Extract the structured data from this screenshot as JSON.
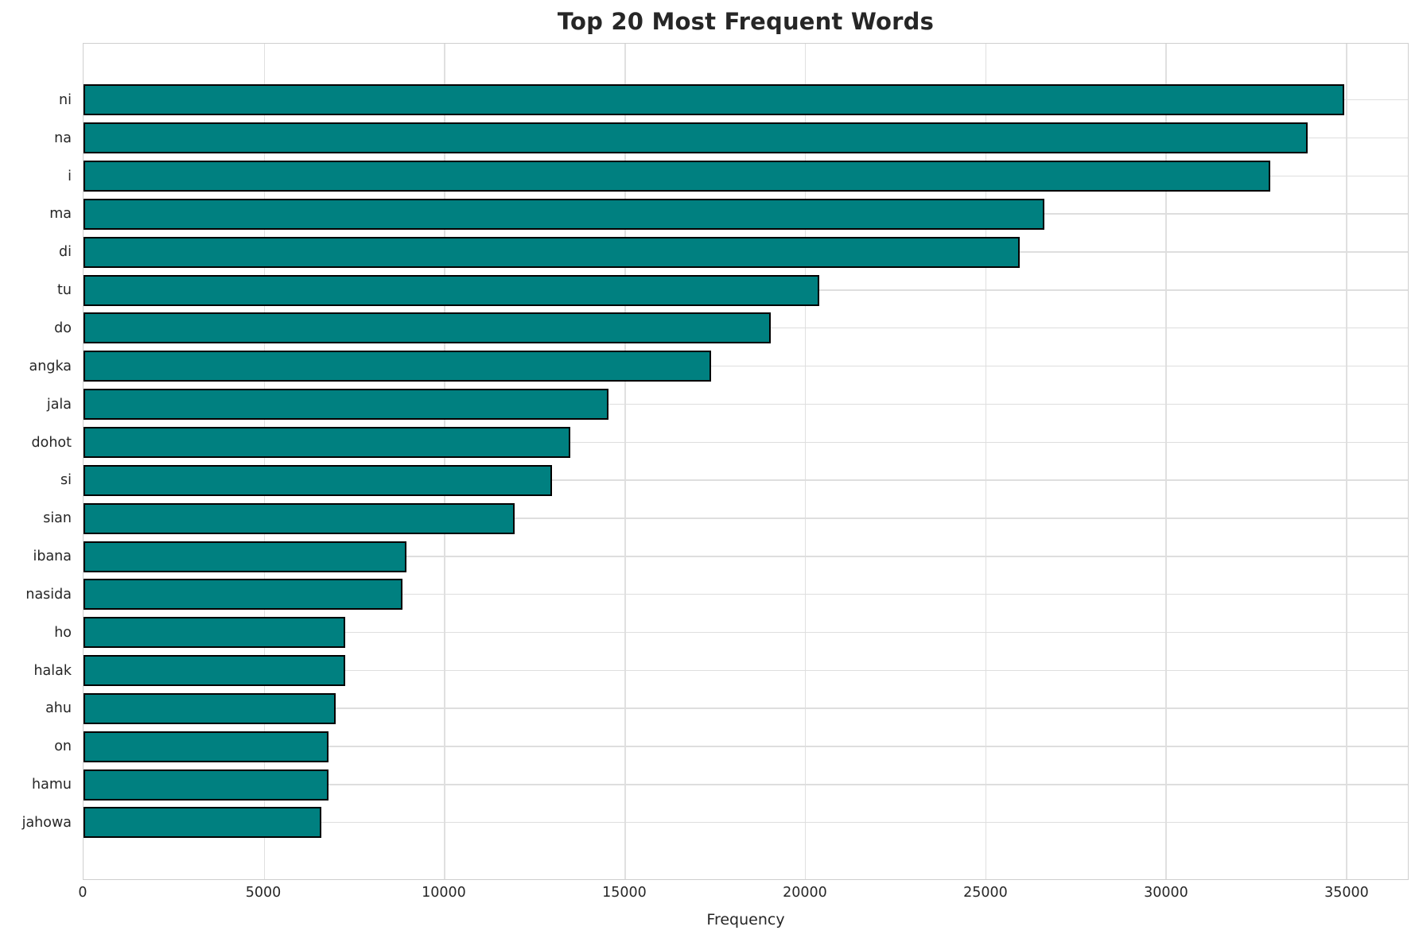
{
  "title": "Top 20 Most Frequent Words",
  "chart_data": {
    "type": "bar",
    "orientation": "horizontal",
    "title": "Top 20 Most Frequent Words",
    "xlabel": "Frequency",
    "ylabel": "",
    "categories": [
      "ni",
      "na",
      "i",
      "ma",
      "di",
      "tu",
      "do",
      "angka",
      "jala",
      "dohot",
      "si",
      "sian",
      "ibana",
      "nasida",
      "ho",
      "halak",
      "ahu",
      "on",
      "hamu",
      "jahowa"
    ],
    "values": [
      34950,
      33950,
      32900,
      26650,
      25950,
      20400,
      19050,
      17400,
      14550,
      13500,
      13000,
      11950,
      8950,
      8850,
      7250,
      7250,
      7000,
      6800,
      6800,
      6600
    ],
    "xlim": [
      0,
      36720
    ],
    "xticks": [
      0,
      5000,
      10000,
      15000,
      20000,
      25000,
      30000,
      35000
    ],
    "grid": true,
    "legend_position": "none",
    "bar_color": "#008080",
    "bar_edge_color": "#000000",
    "grid_color": "#e0e0e0",
    "text_color": "#262626"
  }
}
